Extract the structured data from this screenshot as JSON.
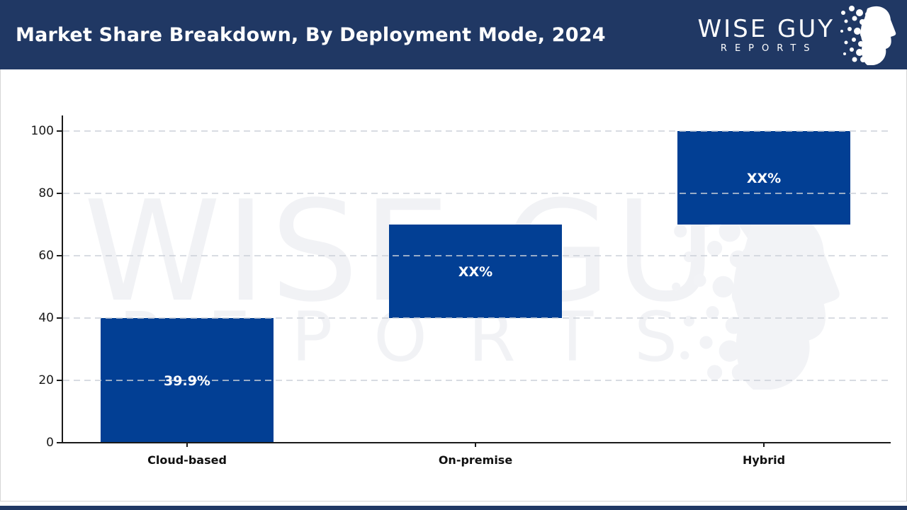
{
  "header": {
    "title": "Market Share Breakdown, By Deployment Mode, 2024",
    "logo": {
      "line1": "WISE GUY",
      "line2": "REPORTS"
    }
  },
  "watermark": {
    "line1": "WISE GUY",
    "line2": "REPORTS"
  },
  "chart_data": {
    "type": "bar",
    "subtype": "floating-waterfall",
    "title": "Market Share Breakdown, By Deployment Mode, 2024",
    "categories": [
      "Cloud-based",
      "On-premise",
      "Hybrid"
    ],
    "series": [
      {
        "category": "Cloud-based",
        "start": 0,
        "end": 39.9,
        "label": "39.9%"
      },
      {
        "category": "On-premise",
        "start": 40,
        "end": 70,
        "label": "XX%"
      },
      {
        "category": "Hybrid",
        "start": 70,
        "end": 100,
        "label": "XX%"
      }
    ],
    "xlabel": "",
    "ylabel": "",
    "ylim": [
      0,
      105
    ],
    "yticks": [
      0,
      20,
      40,
      60,
      80,
      100
    ],
    "grid": "dashed horizontal",
    "legend": "none",
    "bar_color": "#023f94",
    "label_color": "#ffffff",
    "header_color": "#203864",
    "grid_color": "#d8dce2"
  }
}
